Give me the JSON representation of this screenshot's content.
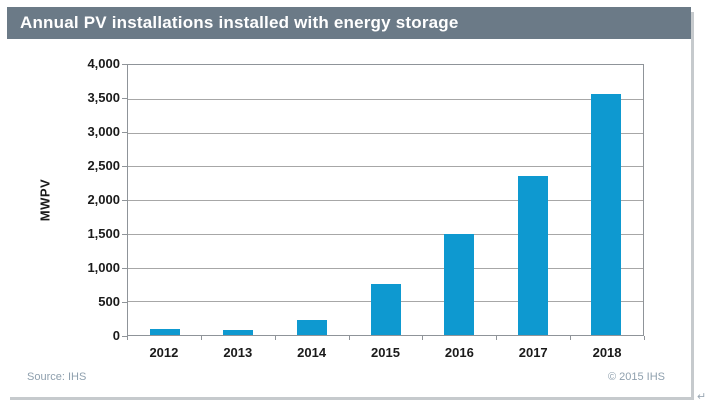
{
  "header": {
    "title": "Annual PV installations installed with energy storage"
  },
  "footer": {
    "source": "Source: IHS",
    "copyright": "© 2015 IHS"
  },
  "misc": {
    "paragraph_mark": "↵"
  },
  "chart_data": {
    "type": "bar",
    "title": "Annual PV installations installed with energy storage",
    "categories": [
      "2012",
      "2013",
      "2014",
      "2015",
      "2016",
      "2017",
      "2018"
    ],
    "values": [
      95,
      70,
      220,
      760,
      1490,
      2350,
      3570
    ],
    "xlabel": "",
    "ylabel": "MWPV",
    "ylim": [
      0,
      4000
    ],
    "ytick_step": 500,
    "ytick_labels": [
      "0",
      "500",
      "1,000",
      "1,500",
      "2,000",
      "2,500",
      "3,000",
      "3,500",
      "4,000"
    ],
    "grid": true,
    "legend": false,
    "colors": {
      "bar": "#0e99d0",
      "title_bar_bg": "#6b7a87",
      "title_text": "#ffffff",
      "gridline": "#a7a7a7",
      "axis": "#8f9499",
      "tick_text": "#1a1a1a",
      "footer_text": "#8fa0ae",
      "frame_border": "#c6cacd"
    }
  }
}
